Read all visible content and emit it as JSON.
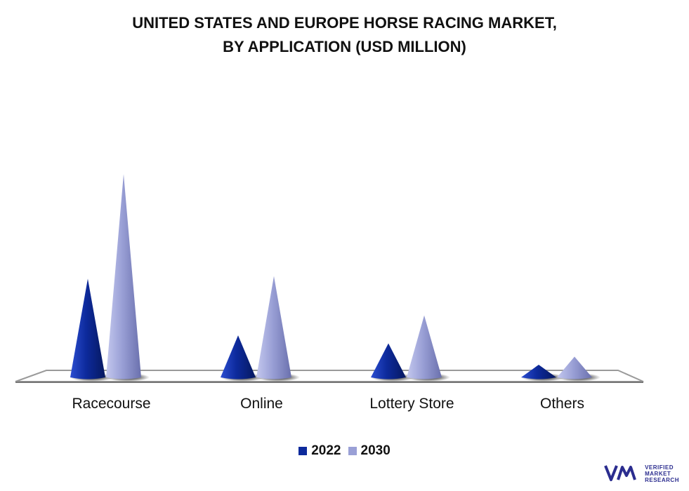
{
  "chart_data": {
    "type": "bar",
    "title_lines": [
      "UNITED STATES AND EUROPE HORSE RACING MARKET,",
      "BY APPLICATION (USD MILLION)"
    ],
    "categories": [
      "Racecourse",
      "Online",
      "Lottery Store",
      "Others"
    ],
    "series": [
      {
        "name": "2022",
        "values": [
          148,
          63,
          51,
          19
        ],
        "color": "#0d2a9c"
      },
      {
        "name": "2030",
        "values": [
          305,
          152,
          93,
          31
        ],
        "color": "#9aa0d6"
      }
    ],
    "ylim": [
      0,
      320
    ],
    "grid": false,
    "legend_position": "bottom-center",
    "mark_shape": "cone"
  },
  "logo": {
    "line1": "VERIFIED",
    "line2": "MARKET",
    "line3": "RESEARCH",
    "mark": "®",
    "color": "#2b2d8f",
    "icon": "vmr-logo-icon"
  }
}
